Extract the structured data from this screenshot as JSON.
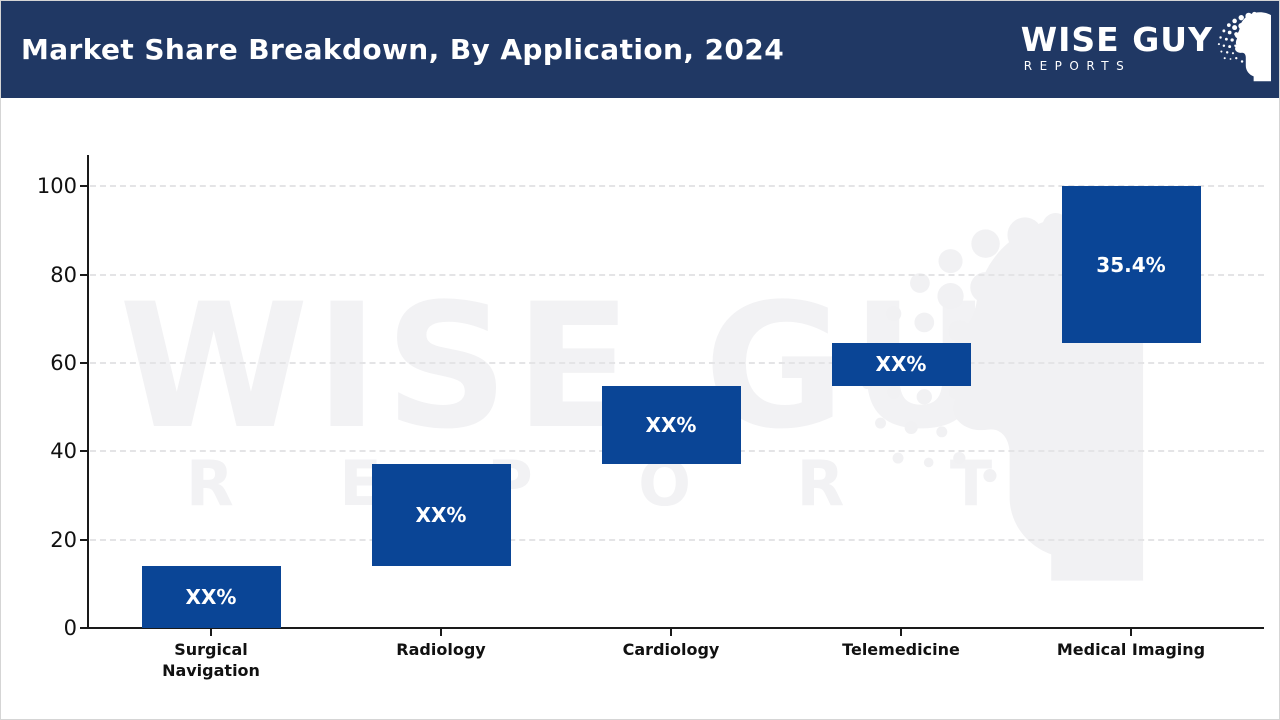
{
  "header": {
    "title": "Market Share Breakdown, By Application, 2024",
    "logo": {
      "line1": "WISE GUY",
      "line2": "REPORTS"
    }
  },
  "watermark": {
    "line1": "WISE GUY",
    "line2": "R E P O R T S"
  },
  "chart_data": {
    "type": "bar",
    "subtype": "waterfall",
    "title": "Market Share Breakdown, By Application, 2024",
    "categories": [
      "Surgical Navigation",
      "Radiology",
      "Cardiology",
      "Telemedicine",
      "Medical Imaging"
    ],
    "segments": [
      {
        "category": "Surgical Navigation",
        "start": 0,
        "end": 14,
        "value": 14,
        "label": "XX%"
      },
      {
        "category": "Radiology",
        "start": 14,
        "end": 37.2,
        "value": 23.2,
        "label": "XX%"
      },
      {
        "category": "Cardiology",
        "start": 37.2,
        "end": 54.9,
        "value": 17.7,
        "label": "XX%"
      },
      {
        "category": "Telemedicine",
        "start": 54.9,
        "end": 64.6,
        "value": 9.7,
        "label": "XX%"
      },
      {
        "category": "Medical Imaging",
        "start": 64.6,
        "end": 100,
        "value": 35.4,
        "label": "35.4%"
      }
    ],
    "xlabel": "",
    "ylabel": "",
    "ylim": [
      0,
      100
    ],
    "yticks": [
      0,
      20,
      40,
      60,
      80,
      100
    ],
    "grid": "horizontal-dashed",
    "legend": "none",
    "bar_color": "#0a4596",
    "bar_label_color": "#ffffff"
  },
  "colors": {
    "header_bg": "#203864",
    "page_border": "#d5d5d5",
    "axis": "#1a1a1a",
    "gridline": "#e4e4e6",
    "watermark": "#f2f2f4"
  }
}
